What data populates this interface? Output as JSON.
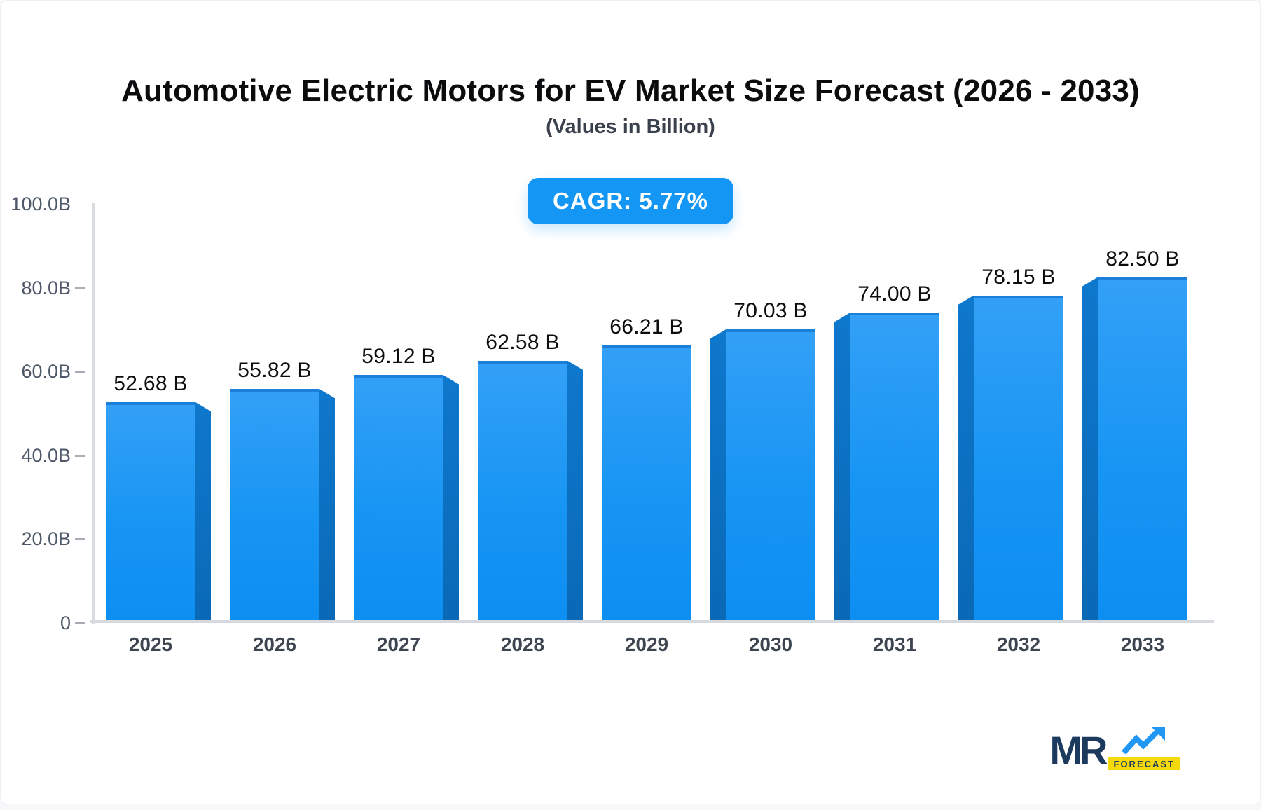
{
  "page": {
    "background": "#f7f8fa",
    "card_background": "#ffffff"
  },
  "header": {
    "title": "Automotive Electric Motors for EV Market Size Forecast (2026 - 2033)",
    "subtitle": "(Values in Billion)",
    "cagr_label": "CAGR: 5.77%",
    "cagr_badge_color": "#1496f5"
  },
  "chart_data": {
    "type": "bar",
    "title": "Automotive Electric Motors for EV Market Size Forecast (2026 - 2033)",
    "subtitle": "(Values in Billion)",
    "annotation": "CAGR: 5.77%",
    "categories": [
      "2025",
      "2026",
      "2027",
      "2028",
      "2029",
      "2030",
      "2031",
      "2032",
      "2033"
    ],
    "values": [
      52.68,
      55.82,
      59.12,
      62.58,
      66.21,
      70.03,
      74.0,
      78.15,
      82.5
    ],
    "value_labels": [
      "52.68 B",
      "55.82 B",
      "59.12 B",
      "62.58 B",
      "66.21 B",
      "70.03 B",
      "74.00 B",
      "78.15 B",
      "82.50 B"
    ],
    "xlabel": "",
    "ylabel": "",
    "ylim": [
      0,
      100
    ],
    "yticks": [
      {
        "value": 100,
        "label": "100.0B"
      },
      {
        "value": 80,
        "label": "80.0B"
      },
      {
        "value": 60,
        "label": "60.0B"
      },
      {
        "value": 40,
        "label": "40.0B"
      },
      {
        "value": 20,
        "label": "20.0B"
      },
      {
        "value": 0,
        "label": "0"
      }
    ],
    "grid": false,
    "legend": "none",
    "bar_style": "3d-extruded, perspective toward center bar",
    "colors": {
      "bar_front_top": "#33a0f6",
      "bar_front_bottom": "#0d8ef1",
      "bar_top_edge": "#1a80d9",
      "bar_side": "#0c70c3",
      "axis_line": "#d9dce1",
      "tick": "#a6adb6",
      "tick_label": "#4e5868",
      "category_label": "#3d4550",
      "value_label": "#0c0d0f"
    }
  },
  "logo": {
    "text": "MR",
    "sub_text": "FORECAST",
    "navy": "#1b3a5e",
    "blue": "#2196f3",
    "yellow": "#f6d90c",
    "icon": "trend-up-arrow"
  }
}
